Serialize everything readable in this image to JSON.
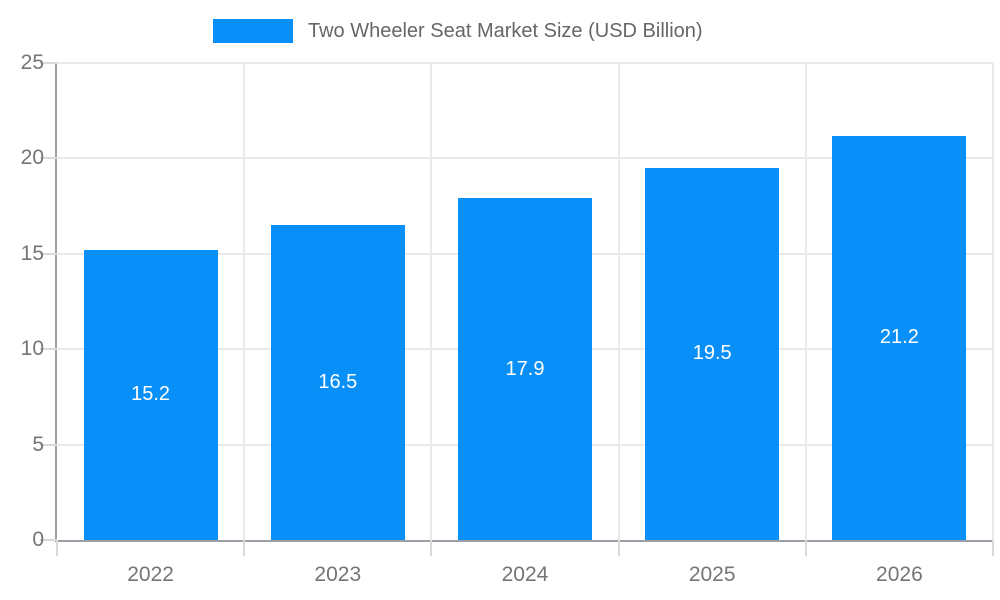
{
  "legend": {
    "label": "Two Wheeler Seat Market Size (USD Billion)"
  },
  "chart_data": {
    "type": "bar",
    "title": "Two Wheeler Seat Market Size (USD Billion)",
    "categories": [
      "2022",
      "2023",
      "2024",
      "2025",
      "2026"
    ],
    "values": [
      15.2,
      16.5,
      17.9,
      19.5,
      21.2
    ],
    "series": [
      {
        "name": "Two Wheeler Seat Market Size (USD Billion)",
        "values": [
          15.2,
          16.5,
          17.9,
          19.5,
          21.2
        ]
      }
    ],
    "xlabel": "",
    "ylabel": "",
    "ylim": [
      0,
      25
    ],
    "yticks": [
      0,
      5,
      10,
      15,
      20,
      25
    ],
    "grid": true,
    "legend_position": "top-center",
    "value_labels_shown": true,
    "colors": {
      "bar": "#0890f8",
      "value_label": "#ffffff",
      "grid": "#e9e9e9",
      "axis": "#9aa0a6",
      "tick": "#d9d9d9",
      "tick_label": "#757575",
      "title": "#666666",
      "background": "#ffffff"
    }
  }
}
